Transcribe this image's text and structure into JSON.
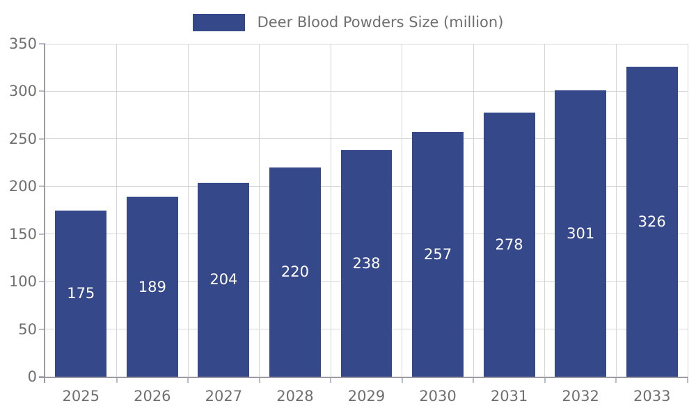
{
  "legend": {
    "label": "Deer Blood Powders Size (million)"
  },
  "chart_data": {
    "type": "bar",
    "title": "Deer Blood Powders Size (million)",
    "categories": [
      "2025",
      "2026",
      "2027",
      "2028",
      "2029",
      "2030",
      "2031",
      "2032",
      "2033"
    ],
    "values": [
      175,
      189,
      204,
      220,
      238,
      257,
      278,
      301,
      326
    ],
    "xlabel": "",
    "ylabel": "",
    "ylim": [
      0,
      350
    ],
    "yticks": [
      0,
      50,
      100,
      150,
      200,
      250,
      300,
      350
    ],
    "grid": true,
    "legend_position": "top",
    "bar_value_labels_inside": true,
    "colors": {
      "bar": "#35498a",
      "bar_label": "#ffffff",
      "axis_text": "#6f6f6f",
      "gridline": "#d6d6d6",
      "axis_line": "#9b9ba1",
      "tick_mark": "#b8bcc8",
      "background": "#ffffff"
    }
  }
}
